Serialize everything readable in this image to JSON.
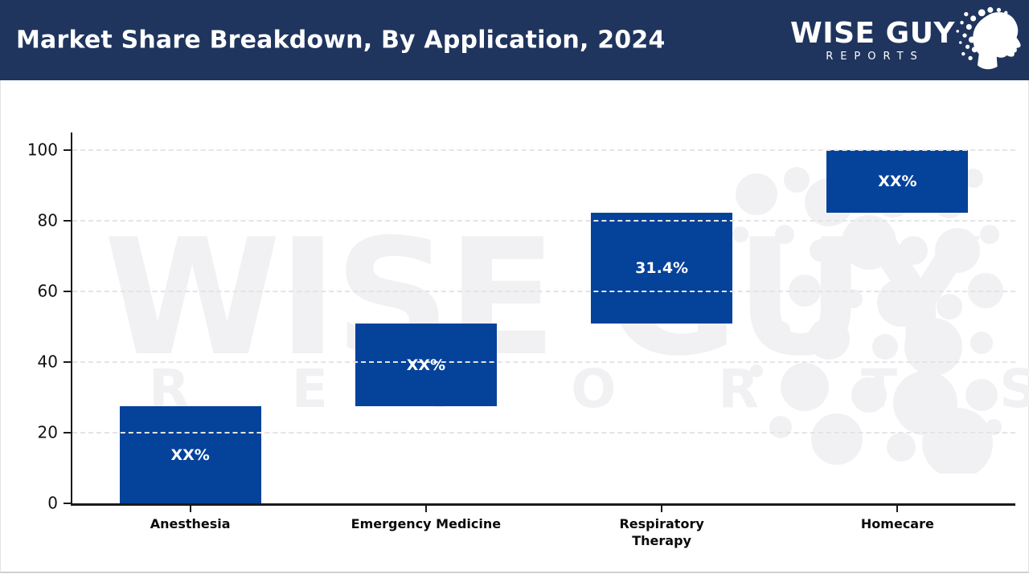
{
  "header": {
    "title": "Market Share Breakdown, By Application, 2024",
    "logo": {
      "line1": "WISE GUY",
      "line2": "REPORTS"
    }
  },
  "watermark": {
    "line1": "WISE GUY",
    "line2": "R E P O R T S"
  },
  "chart_data": {
    "type": "bar",
    "subtype": "waterfall-floating-segments",
    "title": "Market Share Breakdown, By Application, 2024",
    "categories": [
      "Anesthesia",
      "Emergency Medicine",
      "Respiratory\nTherapy",
      "Homecare"
    ],
    "segments": [
      {
        "name": "Anesthesia",
        "start": 0,
        "end": 27.4,
        "value_label": "XX%"
      },
      {
        "name": "Emergency Medicine",
        "start": 27.4,
        "end": 50.9,
        "value_label": "XX%"
      },
      {
        "name": "Respiratory Therapy",
        "start": 50.9,
        "end": 82.3,
        "value_label": "31.4%"
      },
      {
        "name": "Homecare",
        "start": 82.3,
        "end": 100,
        "value_label": "XX%"
      }
    ],
    "ylim": [
      0,
      100
    ],
    "yticks": [
      0,
      20,
      40,
      60,
      80,
      100
    ],
    "xlabel": "",
    "ylabel": "",
    "grid": "horizontal-dashed",
    "legend": "none",
    "bar_color": "#05429a",
    "bar_label_color": "#ffffff"
  },
  "colors": {
    "header_bg": "#1f355e",
    "header_text": "#ffffff",
    "bar_fill": "#05429a",
    "axis": "#1a1a1a",
    "gridline": "#e4e4e4",
    "watermark": "#f1f1f4",
    "frame_line": "#cfcfcf",
    "background": "#ffffff"
  }
}
